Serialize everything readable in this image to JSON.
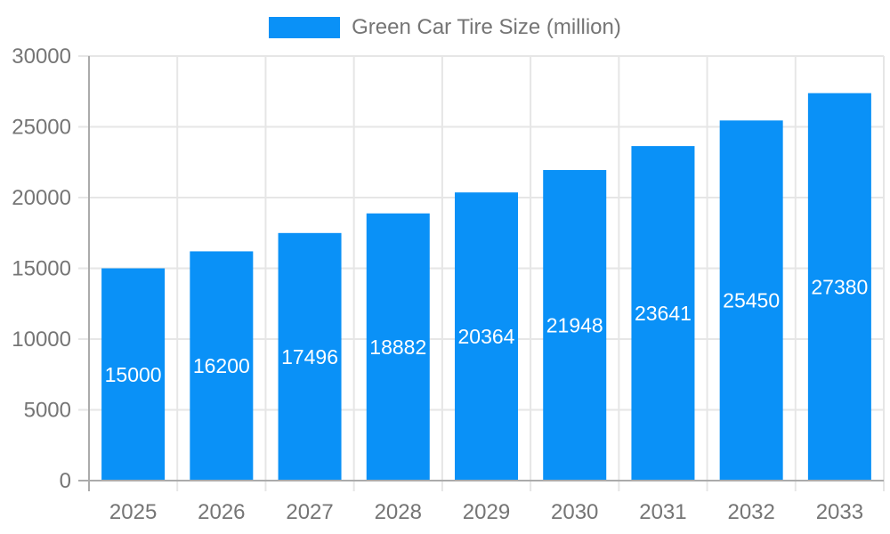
{
  "chart_data": {
    "type": "bar",
    "title": "Green Car Tire Size (million)",
    "categories": [
      "2025",
      "2026",
      "2027",
      "2028",
      "2029",
      "2030",
      "2031",
      "2032",
      "2033"
    ],
    "series": [
      {
        "name": "Green Car Tire Size (million)",
        "values": [
          15000,
          16200,
          17496,
          18882,
          20364,
          21948,
          23641,
          25450,
          27380
        ],
        "color": "#0a91f7"
      }
    ],
    "xlabel": "",
    "ylabel": "",
    "ylim": [
      0,
      30000
    ],
    "yticks": [
      0,
      5000,
      10000,
      15000,
      20000,
      25000,
      30000
    ],
    "grid": true,
    "legend_position": "top",
    "bar_value_labels": "inside-center",
    "colors": {
      "background": "#ffffff",
      "grid": "#e6e6e6",
      "axis": "#ababab",
      "tick_text": "#757575",
      "bar_label_text": "#ffffff"
    }
  }
}
